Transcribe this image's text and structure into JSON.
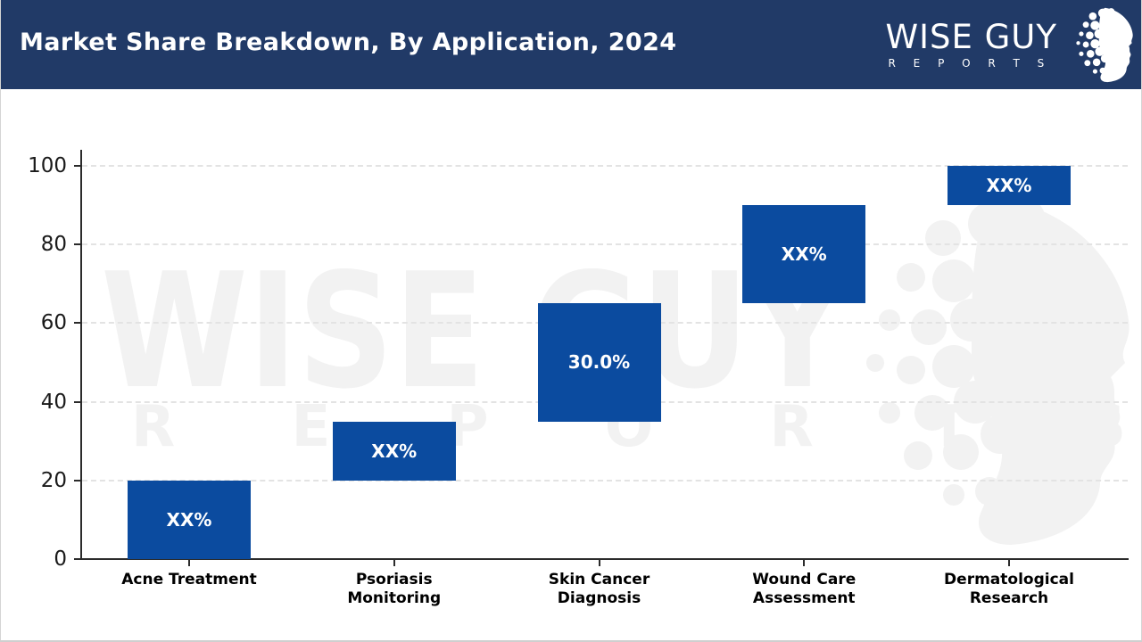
{
  "header": {
    "title": "Market Share Breakdown, By Application, 2024",
    "bg_color": "#213a67",
    "logo": {
      "line1": "WISE GUY",
      "line2": "R E P O R T S"
    }
  },
  "watermark": {
    "line1": "WISE GUY",
    "line2": "R E P O R T S"
  },
  "chart_data": {
    "type": "bar",
    "subtype": "floating-segment (waterfall-style market share bars)",
    "title": "Market Share Breakdown, By Application, 2024",
    "categories": [
      "Acne Treatment",
      "Psoriasis Monitoring",
      "Skin Cancer Diagnosis",
      "Wound Care Assessment",
      "Dermatological Research"
    ],
    "bars": [
      {
        "category": "Acne Treatment",
        "start": 0,
        "end": 20,
        "label": "XX%"
      },
      {
        "category": "Psoriasis Monitoring",
        "start": 20,
        "end": 35,
        "label": "XX%"
      },
      {
        "category": "Skin Cancer Diagnosis",
        "start": 35,
        "end": 65,
        "label": "30.0%"
      },
      {
        "category": "Wound Care Assessment",
        "start": 65,
        "end": 90,
        "label": "XX%"
      },
      {
        "category": "Dermatological Research",
        "start": 90,
        "end": 100,
        "label": "XX%"
      }
    ],
    "xlabel": "",
    "ylabel": "",
    "ylim": [
      0,
      100
    ],
    "yticks": [
      0,
      20,
      40,
      60,
      80,
      100
    ],
    "grid": "horizontal dashed gridlines at y ticks",
    "legend": "none",
    "bar_color": "#0b4b9f",
    "label_color": "#ffffff"
  }
}
